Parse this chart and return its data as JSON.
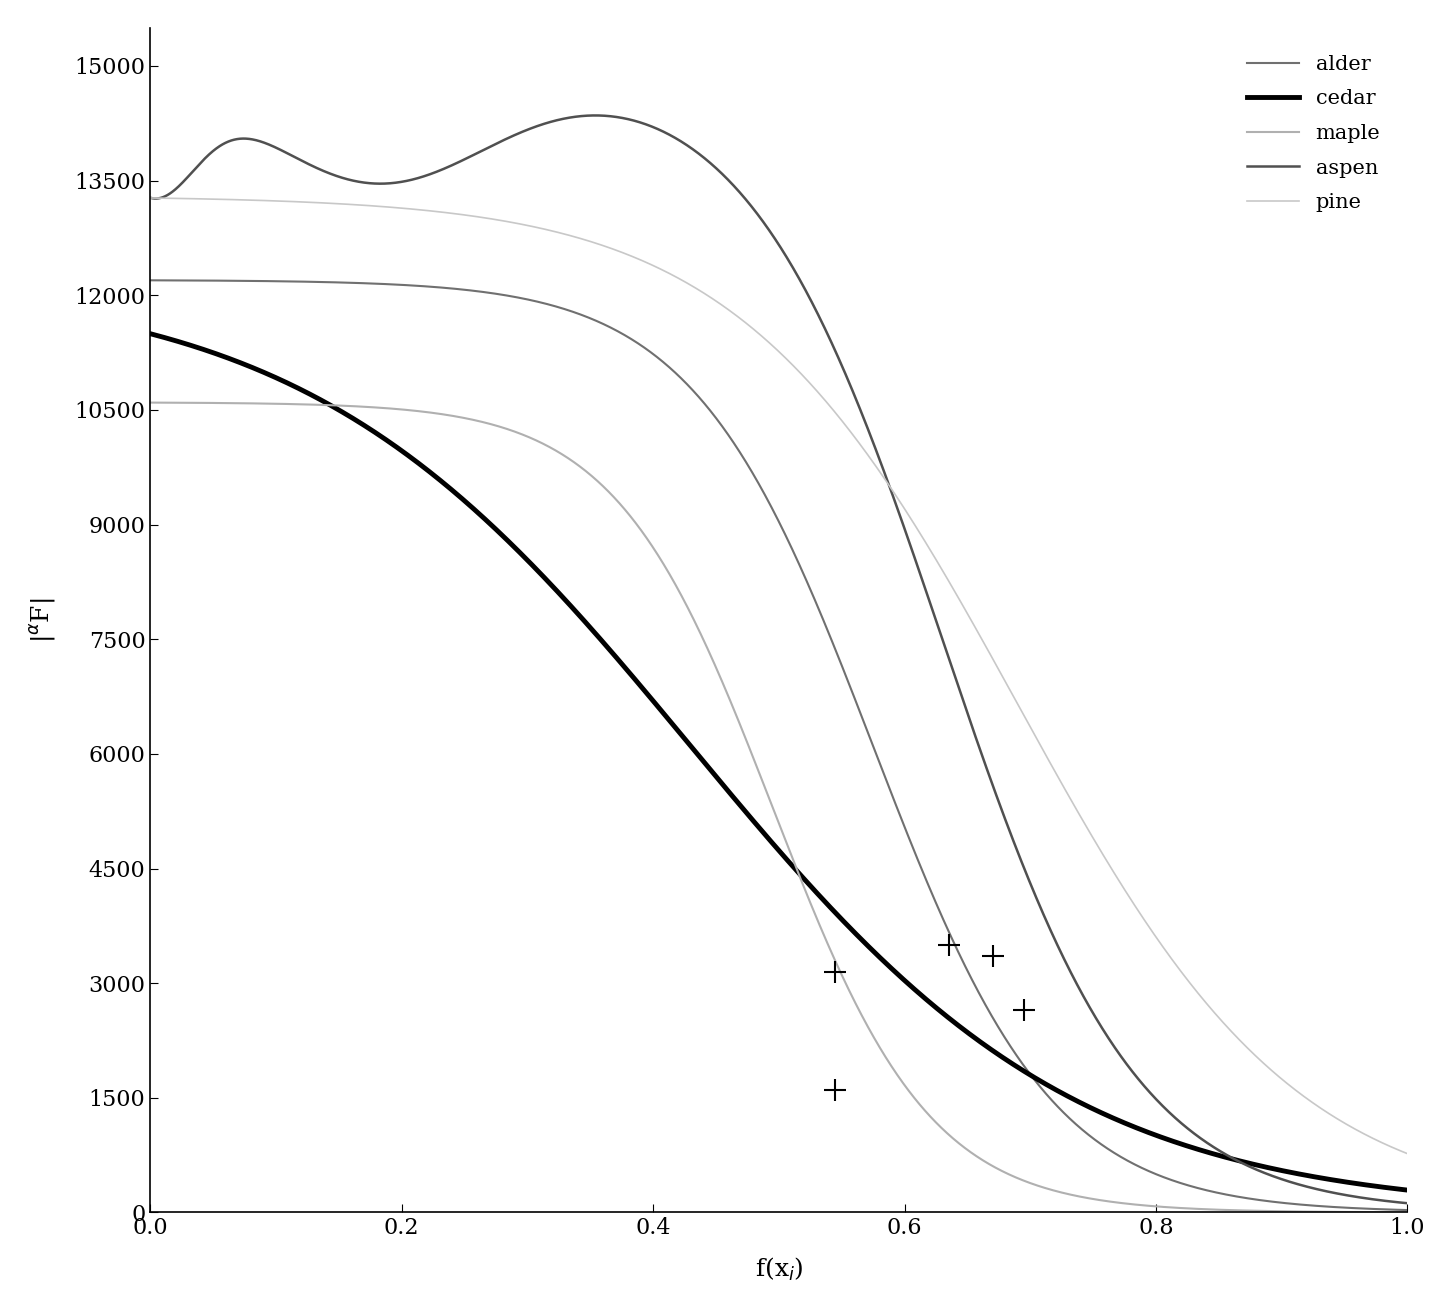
{
  "species": [
    "alder",
    "cedar",
    "maple",
    "aspen",
    "pine"
  ],
  "colors": [
    "#707070",
    "#000000",
    "#b0b0b0",
    "#505050",
    "#c8c8c8"
  ],
  "linewidths": [
    1.5,
    3.5,
    1.5,
    1.8,
    1.2
  ],
  "ylabel": "|$^{\\alpha}$F|",
  "xlabel": "f(x$_i$)",
  "ylim": [
    0,
    15500
  ],
  "xlim": [
    0,
    1.0
  ],
  "yticks": [
    0,
    1500,
    3000,
    4500,
    6000,
    7500,
    9000,
    10500,
    12000,
    13500,
    15000
  ],
  "xticks": [
    0,
    0.2,
    0.4,
    0.6,
    0.8,
    1.0
  ],
  "background_color": "#ffffff",
  "cross_data": [
    [
      0.545,
      3150
    ],
    [
      0.545,
      1600
    ],
    [
      0.635,
      3500
    ],
    [
      0.67,
      3350
    ],
    [
      0.695,
      2650
    ]
  ]
}
